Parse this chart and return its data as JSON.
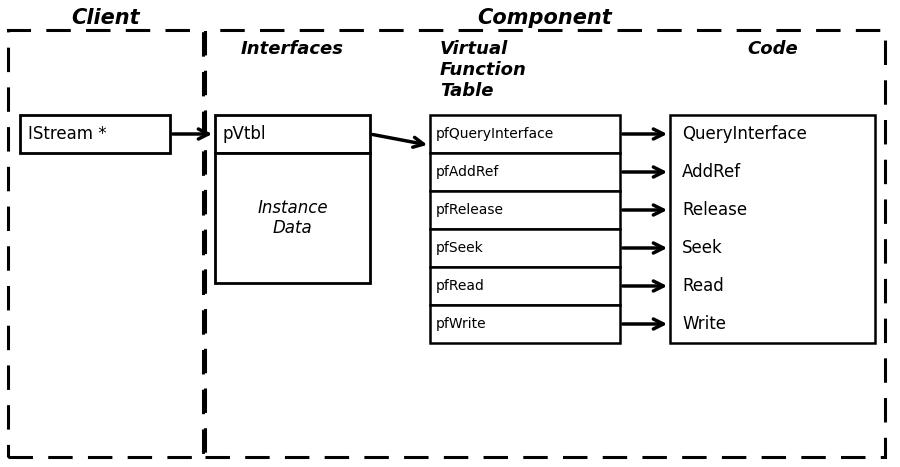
{
  "bg_color": "#ffffff",
  "client_label": "Client",
  "component_label": "Component",
  "interfaces_label": "Interfaces",
  "vft_label": "Virtual\nFunction\nTable",
  "code_label": "Code",
  "istream_label": "IStream *",
  "pvtbl_label": "pVtbl",
  "instance_label": "Instance\nData",
  "vft_entries": [
    "pfQueryInterface",
    "pfAddRef",
    "pfRelease",
    "pfSeek",
    "pfRead",
    "pfWrite"
  ],
  "code_entries": [
    "QueryInterface",
    "AddRef",
    "Release",
    "Seek",
    "Read",
    "Write"
  ],
  "figsize": [
    9.0,
    4.67
  ],
  "dpi": 100
}
